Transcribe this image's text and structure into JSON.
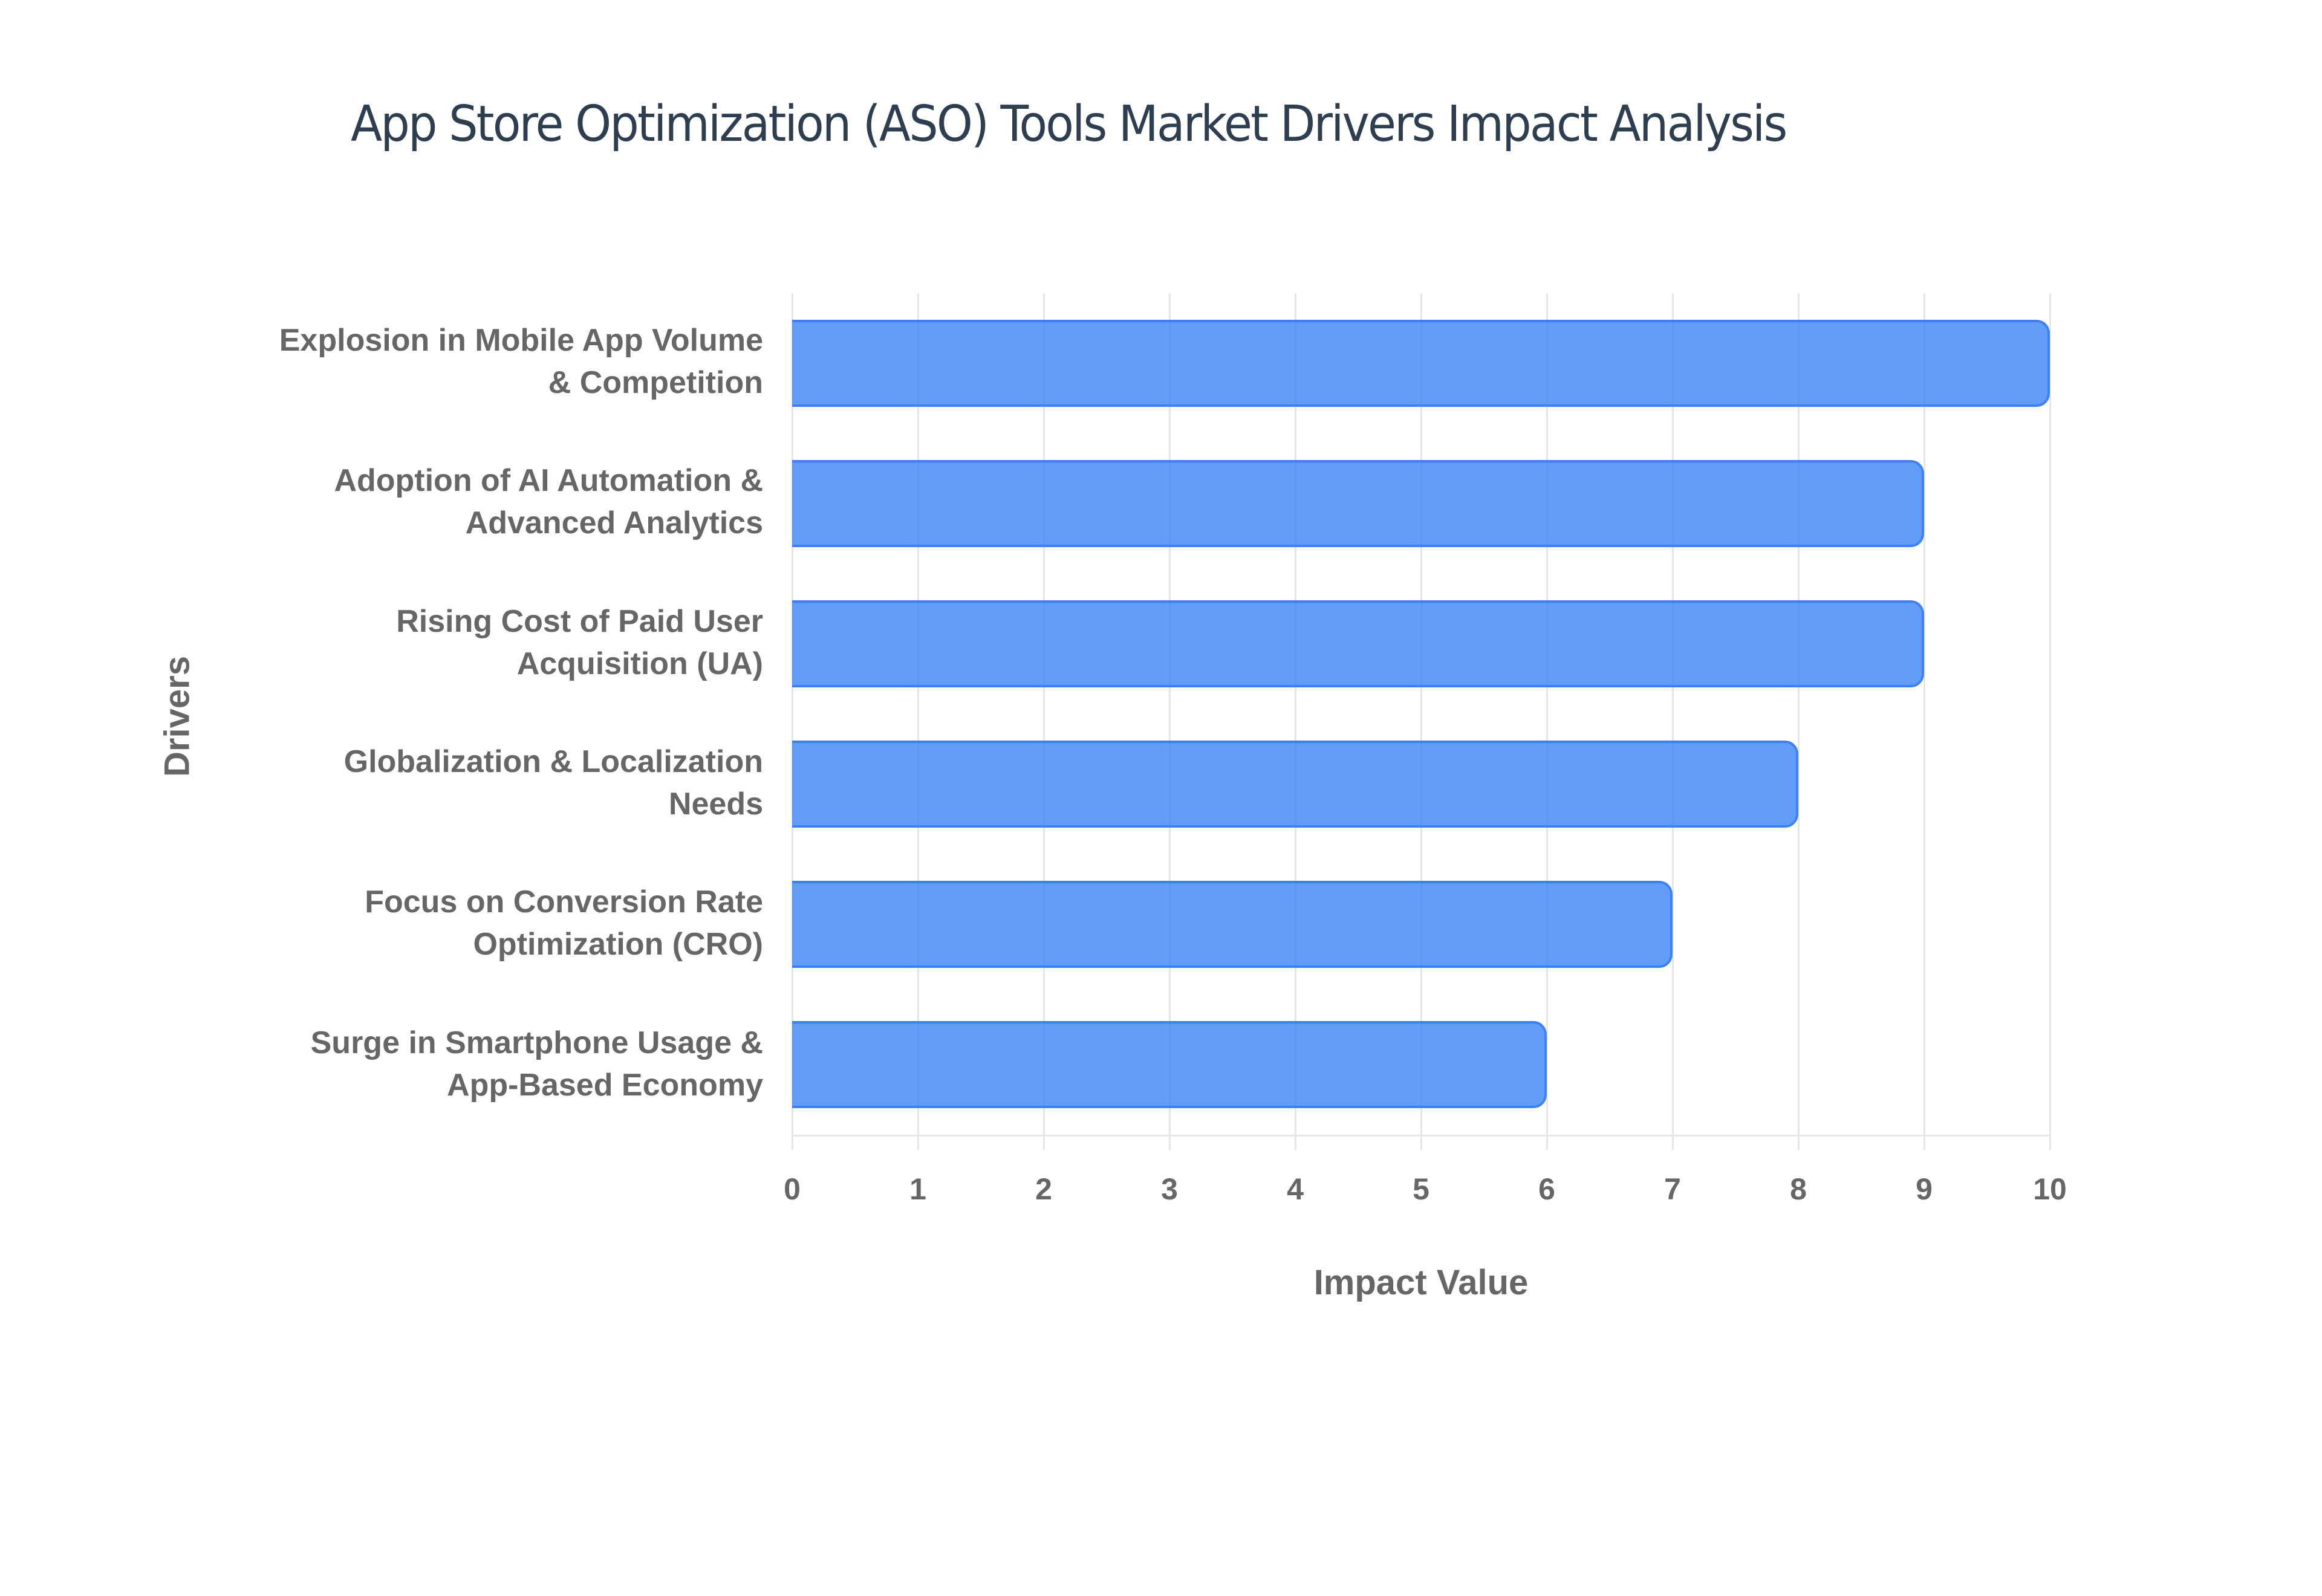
{
  "chart": {
    "title": "App Store Optimization (ASO) Tools Market Drivers Impact Analysis",
    "x_axis_title": "Impact Value",
    "y_axis_title": "Drivers",
    "x_ticks": [
      "0",
      "1",
      "2",
      "3",
      "4",
      "5",
      "6",
      "7",
      "8",
      "9",
      "10"
    ],
    "bar_color": "#3b82f6",
    "bar_fill": "#6199f3",
    "categories": [
      {
        "line1": "Explosion in Mobile App Volume",
        "line2": "& Competition",
        "value": 10
      },
      {
        "line1": "Adoption of AI Automation &",
        "line2": "Advanced Analytics",
        "value": 9
      },
      {
        "line1": "Rising Cost of Paid User",
        "line2": "Acquisition (UA)",
        "value": 9
      },
      {
        "line1": "Globalization & Localization",
        "line2": "Needs",
        "value": 8
      },
      {
        "line1": "Focus on Conversion Rate",
        "line2": "Optimization (CRO)",
        "value": 7
      },
      {
        "line1": "Surge in Smartphone Usage &",
        "line2": "App-Based Economy",
        "value": 6
      }
    ]
  },
  "chart_data": {
    "type": "bar",
    "orientation": "horizontal",
    "title": "App Store Optimization (ASO) Tools Market Drivers Impact Analysis",
    "xlabel": "Impact Value",
    "ylabel": "Drivers",
    "categories": [
      "Explosion in Mobile App Volume & Competition",
      "Adoption of AI Automation & Advanced Analytics",
      "Rising Cost of Paid User Acquisition (UA)",
      "Globalization & Localization Needs",
      "Focus on Conversion Rate Optimization (CRO)",
      "Surge in Smartphone Usage & App-Based Economy"
    ],
    "values": [
      10,
      9,
      9,
      8,
      7,
      6
    ],
    "xlim": [
      0,
      10
    ],
    "x_ticks": [
      0,
      1,
      2,
      3,
      4,
      5,
      6,
      7,
      8,
      9,
      10
    ],
    "grid": true,
    "legend": null,
    "colors": [
      "#3b82f6"
    ]
  }
}
